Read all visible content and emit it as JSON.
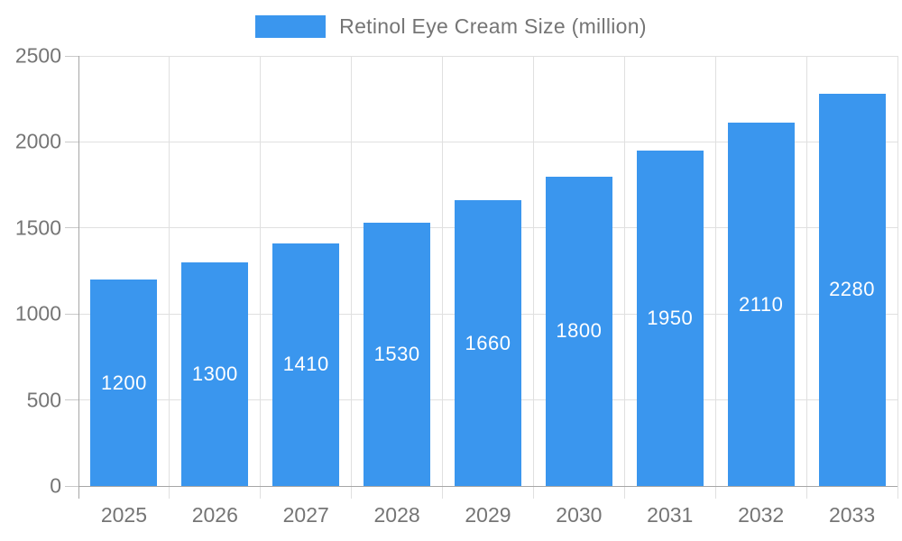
{
  "legend": {
    "label": "Retinol Eye Cream Size (million)"
  },
  "colors": {
    "bar": "#3A96EE",
    "gridline": "#e0e0e0",
    "axis_line": "#a6a6a6",
    "tick_text": "#757575",
    "value_label": "#ffffff",
    "background": "#ffffff"
  },
  "chart_data": {
    "type": "bar",
    "title": "Retinol Eye Cream Size (million)",
    "series_name": "Retinol Eye Cream Size (million)",
    "categories": [
      "2025",
      "2026",
      "2027",
      "2028",
      "2029",
      "2030",
      "2031",
      "2032",
      "2033"
    ],
    "values": [
      1200,
      1300,
      1410,
      1530,
      1660,
      1800,
      1950,
      2110,
      2280
    ],
    "value_labels": [
      "1200",
      "1300",
      "1410",
      "1530",
      "1660",
      "1800",
      "1950",
      "2110",
      "2280"
    ],
    "xlabel": "",
    "ylabel": "",
    "ylim": [
      0,
      2500
    ],
    "y_ticks": [
      0,
      500,
      1000,
      1500,
      2000,
      2500
    ],
    "y_tick_labels": [
      "0",
      "500",
      "1000",
      "1500",
      "2000",
      "2500"
    ],
    "grid": true,
    "legend_position": "top",
    "value_label_position": "center-of-bar"
  }
}
